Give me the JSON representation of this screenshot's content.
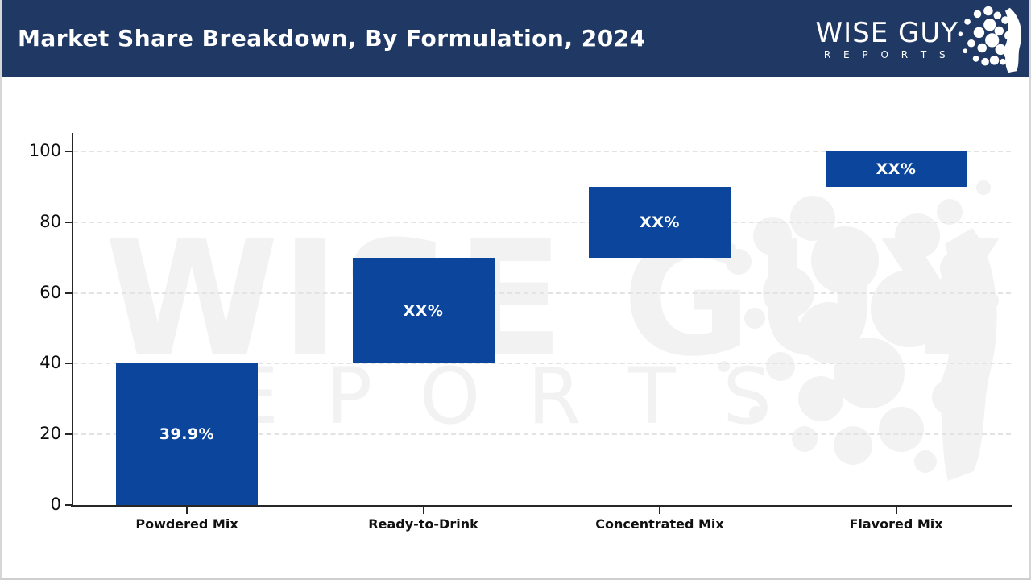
{
  "header": {
    "title": "Market Share Breakdown, By Formulation, 2024",
    "logo_line1": "WISE GUY",
    "logo_line2": "R E P O R T S",
    "bg_color": "#203864"
  },
  "chart_data": {
    "type": "bar",
    "variant": "stacked-waterfall",
    "title": "Market Share Breakdown, By Formulation, 2024",
    "categories": [
      "Powdered Mix",
      "Ready-to-Drink",
      "Concentrated Mix",
      "Flavored Mix"
    ],
    "segments": [
      {
        "category": "Powdered Mix",
        "from": 0,
        "to": 40,
        "label": "39.9%"
      },
      {
        "category": "Ready-to-Drink",
        "from": 40,
        "to": 70,
        "label": "XX%"
      },
      {
        "category": "Concentrated Mix",
        "from": 70,
        "to": 90,
        "label": "XX%"
      },
      {
        "category": "Flavored Mix",
        "from": 90,
        "to": 100,
        "label": "XX%"
      }
    ],
    "yticks": [
      0,
      20,
      40,
      60,
      80,
      100
    ],
    "ylim": [
      0,
      105
    ],
    "xlabel": "",
    "ylabel": "",
    "grid": "horizontal-dashed",
    "legend": "none",
    "bar_color": "#0b459c",
    "bar_label_color": "#ffffff",
    "watermark_line1": "WISE GUY",
    "watermark_line2": "R E P O R T S"
  }
}
